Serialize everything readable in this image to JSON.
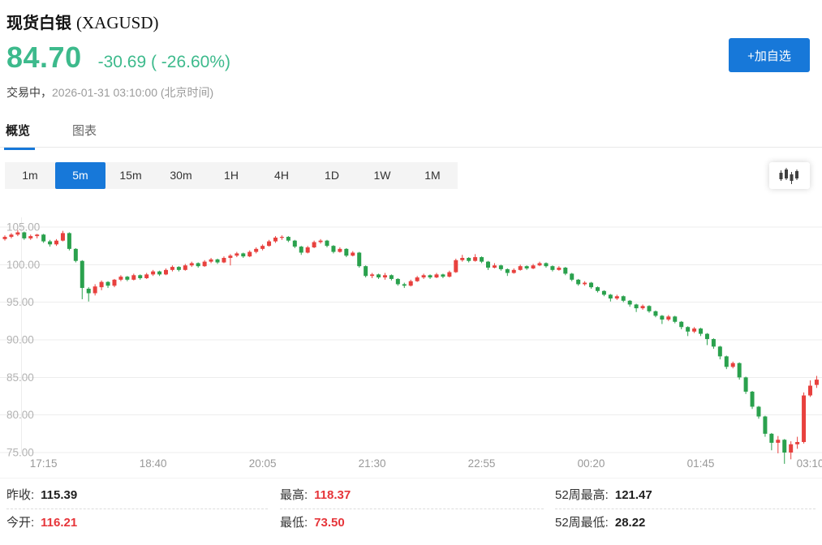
{
  "header": {
    "instrument_name": "现货白银",
    "symbol": "(XAGUSD)",
    "price": "84.70",
    "change": "-30.69 ( -26.60%)",
    "status": "交易中，",
    "timestamp": "2026-01-31 03:10:00 (北京时间)",
    "add_watchlist_label": "+加自选"
  },
  "tabs": [
    {
      "label": "概览",
      "active": true
    },
    {
      "label": "图表",
      "active": false
    }
  ],
  "timeframes": [
    "1m",
    "5m",
    "15m",
    "30m",
    "1H",
    "4H",
    "1D",
    "1W",
    "1M"
  ],
  "active_timeframe": "5m",
  "colors": {
    "price_green": "#3dba8c",
    "accent_blue": "#1778d9",
    "up_red": "#e8413e",
    "down_green": "#2aa14d",
    "value_red": "#e6353a",
    "value_dark": "#1f1f1f",
    "grid": "#ededed",
    "y_label": "#b3b3b3",
    "x_label": "#999999"
  },
  "chart_data": {
    "type": "candlestick",
    "symbol": "XAGUSD",
    "interval": "5m",
    "grid": true,
    "up_color": "#e8413e",
    "down_color": "#2aa14d",
    "price_axis": {
      "min": 75,
      "max": 105,
      "ticks": [
        "105.00",
        "100.00",
        "95.00",
        "90.00",
        "85.00",
        "80.00",
        "75.00"
      ]
    },
    "time_axis": {
      "labels": [
        "17:15",
        "18:40",
        "20:05",
        "21:30",
        "22:55",
        "00:20",
        "01:45",
        "03:10"
      ],
      "indices": [
        6,
        23,
        40,
        57,
        74,
        91,
        108,
        125
      ]
    },
    "candles_ohlc": [
      [
        103.4,
        103.9,
        103.2,
        103.7
      ],
      [
        103.7,
        104.2,
        103.5,
        104.0
      ],
      [
        104.0,
        104.6,
        103.8,
        104.3
      ],
      [
        104.3,
        104.4,
        103.3,
        103.5
      ],
      [
        103.5,
        104.0,
        103.3,
        103.8
      ],
      [
        103.8,
        104.1,
        103.5,
        104.0
      ],
      [
        104.0,
        104.1,
        102.9,
        103.1
      ],
      [
        103.1,
        103.3,
        102.4,
        102.7
      ],
      [
        102.7,
        103.4,
        102.5,
        103.2
      ],
      [
        103.2,
        104.5,
        103.1,
        104.2
      ],
      [
        104.2,
        104.3,
        101.9,
        102.1
      ],
      [
        102.1,
        102.2,
        100.3,
        100.5
      ],
      [
        100.5,
        100.6,
        95.4,
        96.9
      ],
      [
        96.8,
        97.0,
        95.1,
        96.2
      ],
      [
        96.2,
        97.4,
        95.9,
        97.1
      ],
      [
        97.0,
        97.9,
        96.6,
        97.7
      ],
      [
        97.7,
        97.8,
        96.9,
        97.2
      ],
      [
        97.2,
        98.1,
        97.0,
        98.0
      ],
      [
        98.0,
        98.6,
        97.8,
        98.4
      ],
      [
        98.4,
        98.5,
        97.8,
        98.0
      ],
      [
        98.0,
        98.8,
        97.9,
        98.6
      ],
      [
        98.6,
        98.7,
        98.0,
        98.2
      ],
      [
        98.2,
        98.9,
        98.1,
        98.7
      ],
      [
        98.7,
        99.3,
        98.5,
        99.1
      ],
      [
        99.1,
        99.2,
        98.5,
        98.7
      ],
      [
        98.7,
        99.5,
        98.6,
        99.3
      ],
      [
        99.3,
        99.9,
        99.1,
        99.7
      ],
      [
        99.7,
        99.8,
        99.1,
        99.3
      ],
      [
        99.3,
        100.1,
        99.2,
        99.9
      ],
      [
        99.9,
        100.4,
        99.7,
        100.2
      ],
      [
        100.2,
        100.3,
        99.6,
        99.8
      ],
      [
        99.8,
        100.6,
        99.7,
        100.4
      ],
      [
        100.4,
        100.9,
        100.2,
        100.7
      ],
      [
        100.7,
        100.8,
        100.1,
        100.3
      ],
      [
        100.3,
        101.1,
        100.2,
        100.9
      ],
      [
        100.9,
        101.4,
        99.9,
        101.2
      ],
      [
        101.2,
        101.7,
        101.0,
        101.5
      ],
      [
        101.5,
        101.6,
        100.9,
        101.1
      ],
      [
        101.1,
        101.9,
        101.0,
        101.7
      ],
      [
        101.7,
        102.3,
        101.5,
        102.1
      ],
      [
        102.1,
        102.7,
        101.9,
        102.5
      ],
      [
        102.5,
        103.3,
        102.4,
        103.1
      ],
      [
        103.1,
        103.8,
        102.9,
        103.6
      ],
      [
        103.6,
        103.9,
        103.3,
        103.7
      ],
      [
        103.7,
        103.8,
        103.0,
        103.2
      ],
      [
        103.2,
        103.3,
        102.2,
        102.4
      ],
      [
        102.4,
        102.5,
        101.3,
        101.6
      ],
      [
        101.6,
        102.5,
        101.5,
        102.3
      ],
      [
        102.3,
        103.2,
        102.2,
        103.0
      ],
      [
        103.0,
        103.4,
        102.8,
        103.2
      ],
      [
        103.2,
        103.3,
        102.3,
        102.5
      ],
      [
        102.5,
        102.6,
        101.5,
        101.7
      ],
      [
        101.7,
        102.3,
        101.6,
        102.1
      ],
      [
        102.1,
        102.2,
        101.0,
        101.2
      ],
      [
        101.2,
        101.8,
        101.1,
        101.6
      ],
      [
        101.6,
        101.7,
        99.6,
        99.8
      ],
      [
        99.8,
        99.9,
        98.3,
        98.5
      ],
      [
        98.5,
        98.9,
        98.2,
        98.7
      ],
      [
        98.7,
        98.8,
        98.1,
        98.3
      ],
      [
        98.3,
        98.9,
        98.0,
        98.6
      ],
      [
        98.6,
        98.7,
        97.9,
        98.1
      ],
      [
        98.1,
        98.2,
        97.2,
        97.4
      ],
      [
        97.4,
        97.6,
        96.9,
        97.2
      ],
      [
        97.2,
        98.0,
        97.1,
        97.8
      ],
      [
        97.8,
        98.5,
        97.7,
        98.3
      ],
      [
        98.3,
        98.8,
        98.1,
        98.6
      ],
      [
        98.6,
        98.7,
        98.1,
        98.3
      ],
      [
        98.3,
        98.9,
        98.2,
        98.7
      ],
      [
        98.7,
        98.8,
        98.2,
        98.4
      ],
      [
        98.4,
        99.2,
        98.3,
        99.0
      ],
      [
        99.0,
        100.8,
        98.9,
        100.6
      ],
      [
        100.6,
        101.3,
        100.4,
        100.9
      ],
      [
        100.9,
        101.0,
        100.3,
        100.5
      ],
      [
        100.5,
        101.4,
        100.4,
        101.0
      ],
      [
        101.0,
        101.1,
        100.2,
        100.4
      ],
      [
        100.4,
        100.5,
        99.3,
        99.6
      ],
      [
        99.6,
        100.2,
        99.5,
        99.9
      ],
      [
        99.9,
        100.0,
        99.2,
        99.4
      ],
      [
        99.4,
        99.5,
        98.5,
        98.9
      ],
      [
        98.9,
        99.5,
        98.8,
        99.3
      ],
      [
        99.3,
        100.0,
        99.2,
        99.8
      ],
      [
        99.8,
        99.9,
        99.3,
        99.5
      ],
      [
        99.5,
        100.1,
        99.4,
        99.9
      ],
      [
        99.9,
        100.4,
        99.8,
        100.2
      ],
      [
        100.2,
        100.3,
        99.6,
        99.8
      ],
      [
        99.8,
        99.9,
        99.1,
        99.3
      ],
      [
        99.3,
        99.8,
        99.2,
        99.6
      ],
      [
        99.6,
        99.7,
        98.6,
        98.8
      ],
      [
        98.8,
        98.9,
        97.8,
        98.0
      ],
      [
        98.0,
        98.1,
        97.2,
        97.4
      ],
      [
        97.4,
        97.8,
        97.2,
        97.6
      ],
      [
        97.6,
        97.7,
        96.8,
        97.0
      ],
      [
        97.0,
        97.1,
        96.3,
        96.5
      ],
      [
        96.5,
        96.6,
        95.8,
        96.0
      ],
      [
        96.0,
        96.1,
        95.1,
        95.5
      ],
      [
        95.5,
        96.0,
        95.3,
        95.8
      ],
      [
        95.8,
        95.9,
        95.0,
        95.2
      ],
      [
        95.2,
        95.3,
        94.4,
        94.7
      ],
      [
        94.7,
        94.8,
        93.7,
        94.2
      ],
      [
        94.2,
        94.7,
        94.0,
        94.5
      ],
      [
        94.5,
        94.6,
        93.6,
        93.8
      ],
      [
        93.8,
        93.9,
        93.0,
        93.2
      ],
      [
        93.2,
        93.3,
        92.1,
        92.7
      ],
      [
        92.7,
        93.3,
        92.5,
        93.1
      ],
      [
        93.1,
        93.2,
        92.2,
        92.4
      ],
      [
        92.4,
        92.5,
        91.4,
        91.7
      ],
      [
        91.7,
        91.8,
        90.5,
        91.1
      ],
      [
        91.1,
        91.7,
        90.9,
        91.5
      ],
      [
        91.5,
        91.6,
        90.5,
        90.8
      ],
      [
        90.8,
        90.9,
        89.3,
        90.1
      ],
      [
        90.1,
        90.2,
        88.8,
        89.1
      ],
      [
        89.1,
        89.2,
        87.4,
        87.8
      ],
      [
        87.8,
        87.9,
        86.1,
        86.4
      ],
      [
        86.4,
        87.1,
        86.2,
        86.9
      ],
      [
        86.9,
        87.0,
        84.7,
        85.0
      ],
      [
        85.0,
        85.1,
        82.8,
        83.1
      ],
      [
        83.1,
        83.2,
        80.8,
        81.1
      ],
      [
        81.1,
        81.2,
        79.5,
        79.8
      ],
      [
        79.8,
        79.9,
        77.1,
        77.5
      ],
      [
        77.5,
        77.6,
        75.3,
        76.3
      ],
      [
        76.3,
        77.2,
        74.9,
        76.7
      ],
      [
        76.7,
        76.8,
        73.5,
        75.0
      ],
      [
        75.0,
        76.5,
        74.1,
        76.1
      ],
      [
        76.1,
        77.1,
        75.5,
        76.4
      ],
      [
        76.4,
        83.0,
        76.2,
        82.6
      ],
      [
        82.6,
        84.6,
        82.4,
        83.9
      ],
      [
        84.0,
        85.2,
        83.6,
        84.7
      ]
    ]
  },
  "stats_columns": [
    [
      {
        "name": "prev-close",
        "label": "昨收:",
        "value": "115.39",
        "emphasis": "dark"
      },
      {
        "name": "open",
        "label": "今开:",
        "value": "116.21",
        "emphasis": "red"
      }
    ],
    [
      {
        "name": "high",
        "label": "最高:",
        "value": "118.37",
        "emphasis": "red"
      },
      {
        "name": "low",
        "label": "最低:",
        "value": "73.50",
        "emphasis": "red"
      }
    ],
    [
      {
        "name": "52w-high",
        "label": "52周最高:",
        "value": "121.47",
        "emphasis": "dark"
      },
      {
        "name": "52w-low",
        "label": "52周最低:",
        "value": "28.22",
        "emphasis": "dark"
      }
    ]
  ]
}
